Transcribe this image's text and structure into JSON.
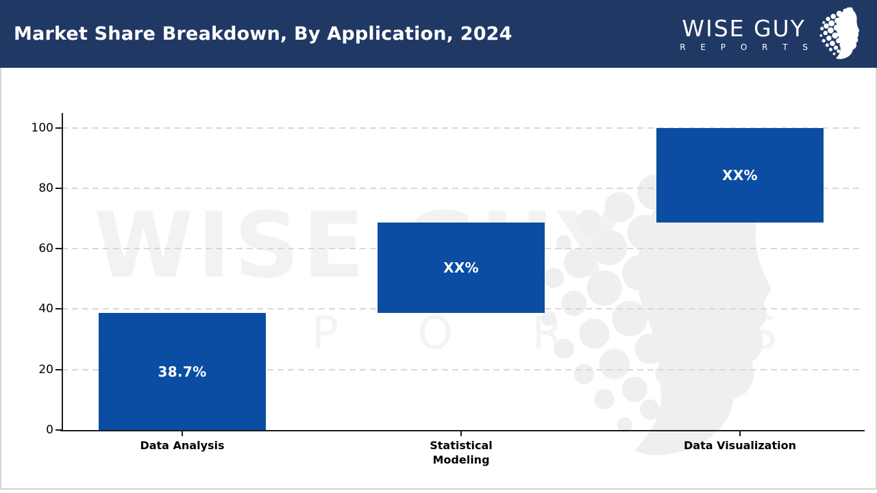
{
  "header": {
    "title": "Market Share Breakdown, By Application, 2024",
    "logo": {
      "line1": "WISE GUY",
      "line2": "R E P O R T S"
    }
  },
  "watermark": {
    "line1": "WISE GUY",
    "line2": "R E P O R T S"
  },
  "colors": {
    "header_bg": "#203864",
    "bar": "#0b4da2",
    "axis": "#1a1a1a",
    "gridline": "#d8d8d8",
    "watermark": "#f2f2f2"
  },
  "chart_data": {
    "type": "bar",
    "subtype": "waterfall",
    "title": "Market Share Breakdown, By Application, 2024",
    "categories": [
      "Data Analysis",
      "Statistical\nModeling",
      "Data Visualization"
    ],
    "segments": [
      {
        "start": 0,
        "end": 38.7,
        "label": "38.7%"
      },
      {
        "start": 38.7,
        "end": 68.6,
        "label": "XX%"
      },
      {
        "start": 68.6,
        "end": 100,
        "label": "XX%"
      }
    ],
    "increments_estimated": [
      38.7,
      29.9,
      31.4
    ],
    "yticks": [
      0,
      20,
      40,
      60,
      80,
      100
    ],
    "ylim": [
      0,
      105
    ],
    "xlabel": "",
    "ylabel": "",
    "grid": {
      "horizontal": true,
      "style": "dashed"
    },
    "legend": "none"
  }
}
